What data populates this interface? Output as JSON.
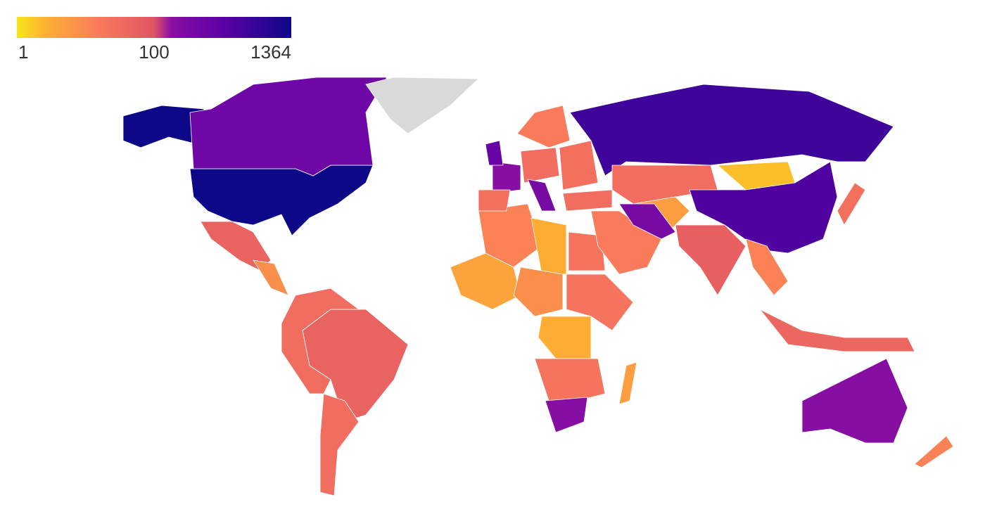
{
  "chart_data": {
    "type": "choropleth",
    "colorbar_ticks": [
      1,
      100,
      1364
    ],
    "values": [
      1364,
      250,
      50,
      null,
      50,
      30,
      30,
      8,
      12,
      3,
      20,
      4,
      8,
      20,
      3,
      20,
      150,
      5,
      150,
      300,
      25,
      30,
      200,
      15,
      25,
      30,
      600,
      30,
      5,
      2,
      450,
      15,
      200,
      60,
      12,
      25,
      40,
      150,
      12
    ]
  }
}
